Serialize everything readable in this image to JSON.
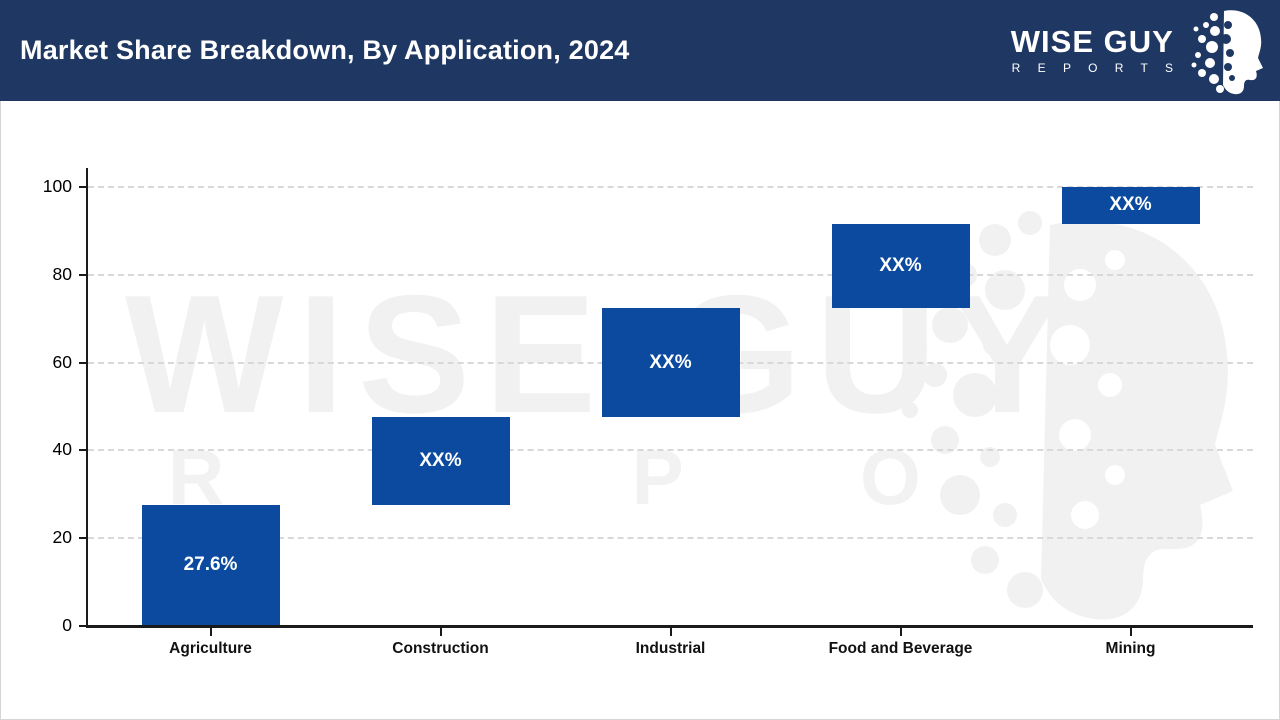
{
  "header": {
    "title": "Market Share Breakdown, By Application, 2024",
    "bg_color": "#1f3863",
    "logo": {
      "line1": "WISE GUY",
      "line2": "R E P O R T S",
      "icon": "dotted-head-profile"
    }
  },
  "watermark": {
    "line1": "WISE GUY",
    "line2": "REPORTS",
    "icon": "dotted-head-profile"
  },
  "chart_data": {
    "type": "bar",
    "subtype": "waterfall-floating-bars",
    "title": "Market Share Breakdown, By Application, 2024",
    "xlabel": "",
    "ylabel": "",
    "categories": [
      "Agriculture",
      "Construction",
      "Industrial",
      "Food and Beverage",
      "Mining"
    ],
    "segments": [
      {
        "category": "Agriculture",
        "start": 0,
        "end": 27.6,
        "value": 27.6,
        "label": "27.6%"
      },
      {
        "category": "Construction",
        "start": 27.6,
        "end": 47.6,
        "value": 20.0,
        "label": "XX%"
      },
      {
        "category": "Industrial",
        "start": 47.6,
        "end": 72.4,
        "value": 24.8,
        "label": "XX%"
      },
      {
        "category": "Food and Beverage",
        "start": 72.4,
        "end": 91.6,
        "value": 19.2,
        "label": "XX%"
      },
      {
        "category": "Mining",
        "start": 91.6,
        "end": 100,
        "value": 8.4,
        "label": "XX%"
      }
    ],
    "yticks": [
      0,
      20,
      40,
      60,
      80,
      100
    ],
    "ylim": [
      0,
      104
    ],
    "grid": "horizontal-dashed",
    "legend": "none",
    "bar_color": "#0b4a9e",
    "axis_color": "#1a1a1a",
    "gridline_color": "#d8d8d8"
  }
}
